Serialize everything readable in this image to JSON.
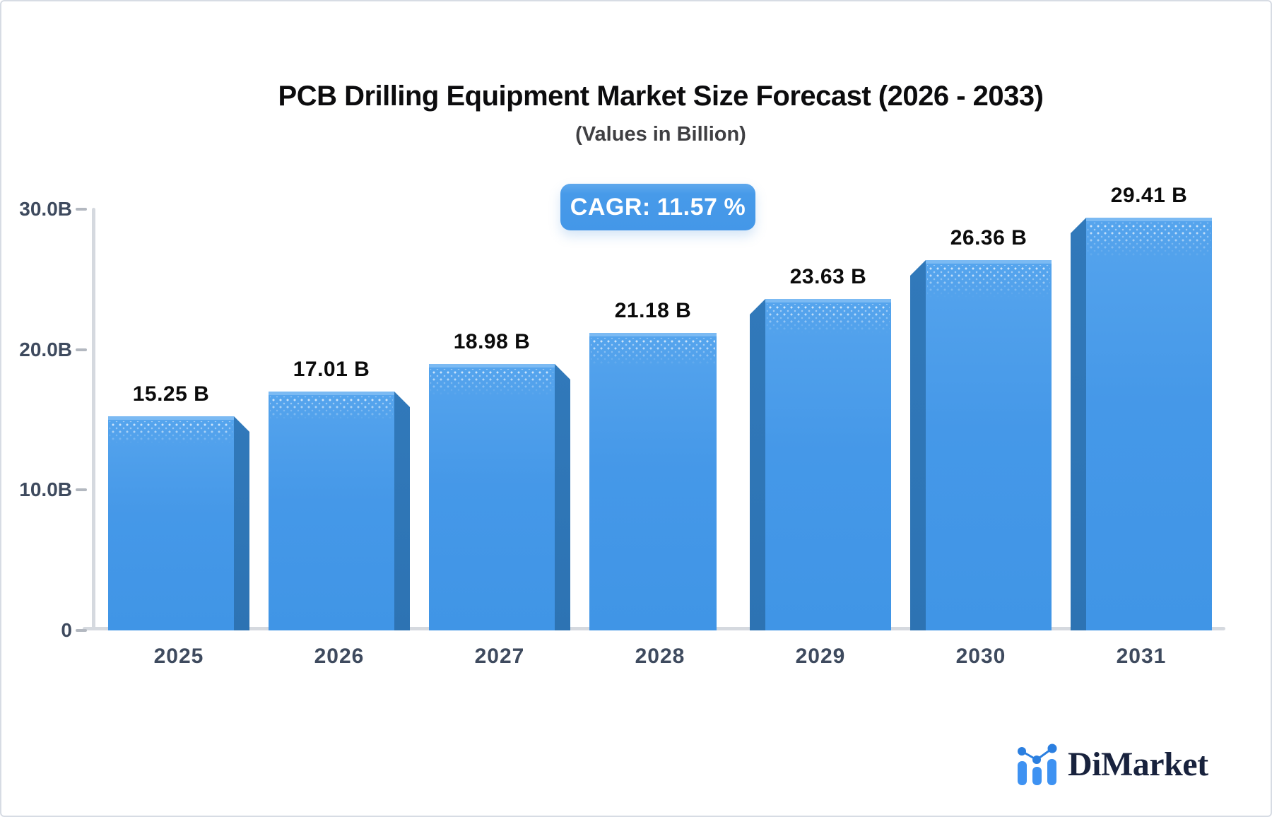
{
  "header": {
    "title": "PCB Drilling Equipment Market Size Forecast (2026 - 2033)",
    "subtitle": "(Values in Billion)"
  },
  "badge": {
    "prefix": "CAGR:",
    "value": "11.57",
    "unit": "%"
  },
  "chart_data": {
    "type": "bar",
    "title": "PCB Drilling Equipment Market Size Forecast (2026 - 2033)",
    "subtitle": "(Values in Billion)",
    "unit": "Billion",
    "categories": [
      "2025",
      "2026",
      "2027",
      "2028",
      "2029",
      "2030",
      "2031"
    ],
    "values": [
      15.25,
      17.01,
      18.98,
      21.18,
      23.63,
      26.36,
      29.41
    ],
    "value_labels": [
      "15.25 B",
      "17.01 B",
      "18.98 B",
      "21.18 B",
      "23.63 B",
      "26.36 B",
      "29.41 B"
    ],
    "ylim": [
      0,
      30
    ],
    "yticks": [
      {
        "value": 0,
        "label": "0"
      },
      {
        "value": 10,
        "label": "10.0B"
      },
      {
        "value": 20,
        "label": "20.0B"
      },
      {
        "value": 30,
        "label": "30.0B"
      }
    ],
    "grid": false,
    "legend": false,
    "bar_color": "#4497E8",
    "bar_side_color": "#2F76B6",
    "bar_cap_color": "#7BBAF3",
    "cagr_percent": 11.57
  },
  "logo": {
    "text": "DiMarket",
    "icon": "bar-chart-logo-icon",
    "icon_color": "#3E92F2",
    "text_color": "#18223D"
  }
}
